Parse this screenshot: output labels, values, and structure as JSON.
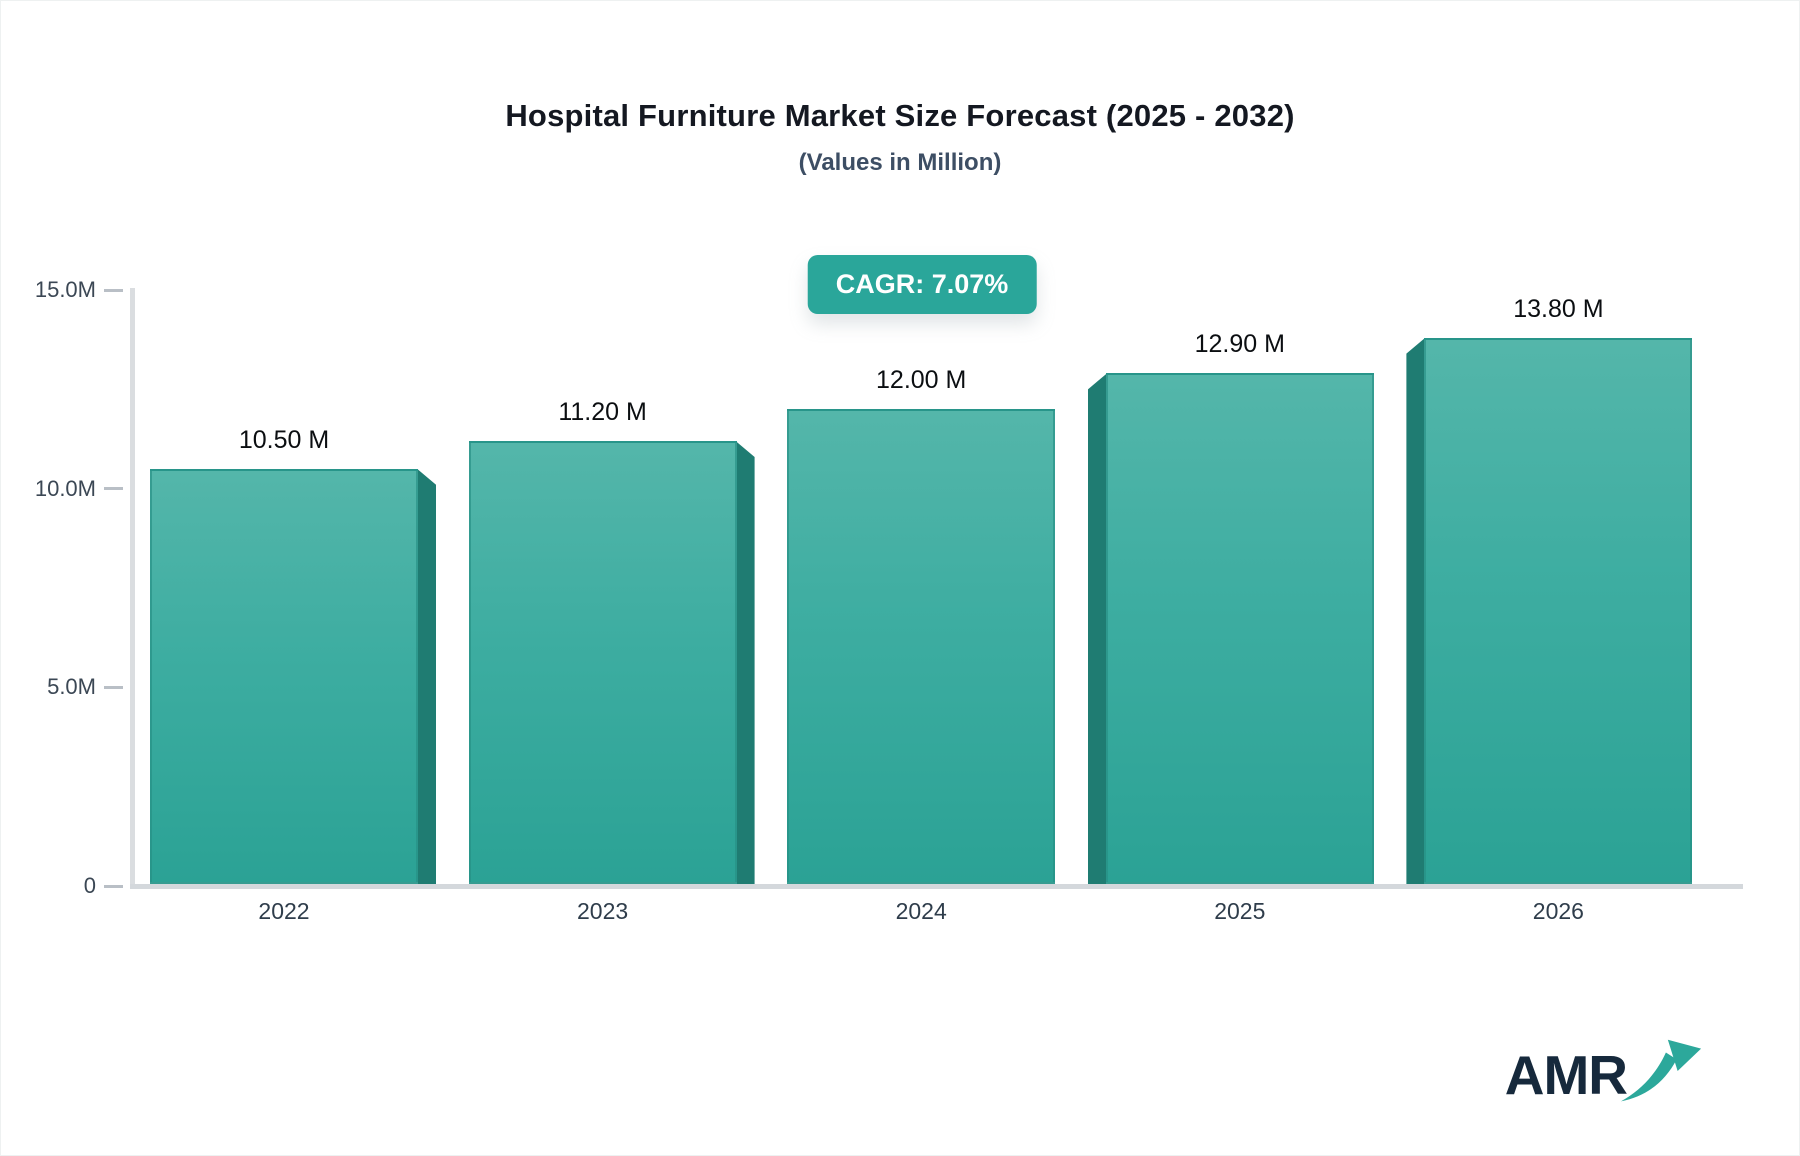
{
  "page": {
    "title": "Hospital Furniture Market Size Forecast (2025 - 2032)",
    "subtitle": "(Values in Million)",
    "cagr_badge": "CAGR: 7.07%"
  },
  "chart_data": {
    "type": "bar",
    "title": "Hospital Furniture Market Size Forecast (2025 - 2032)",
    "subtitle": "(Values in Million)",
    "annotation": "CAGR: 7.07%",
    "unit": "Million",
    "categories": [
      "2022",
      "2023",
      "2024",
      "2025",
      "2026"
    ],
    "values": [
      10.5,
      11.2,
      12.0,
      12.9,
      13.8
    ],
    "value_labels": [
      "10.50 M",
      "11.20 M",
      "12.00 M",
      "12.90 M",
      "13.80 M"
    ],
    "ylim": [
      0,
      15
    ],
    "yticks": [
      {
        "label": "15.0M",
        "value": 15
      },
      {
        "label": "10.0M",
        "value": 10
      },
      {
        "label": "5.0M",
        "value": 5
      },
      {
        "label": "0",
        "value": 0
      }
    ],
    "grid": false,
    "legend": "none",
    "bar_bevels": [
      "right",
      "right",
      "none",
      "left",
      "left"
    ],
    "colors": {
      "bar_top": "#54b6aa",
      "bar_bottom": "#2ba295",
      "bar_side": "#1f7c72",
      "badge_bg": "#2aa69a",
      "axis_line": "#d4d8dc",
      "title_text": "#141821",
      "subtitle_text": "#3d4e64",
      "tick_text": "#3b4754"
    }
  },
  "logo": {
    "text": "AMR"
  }
}
